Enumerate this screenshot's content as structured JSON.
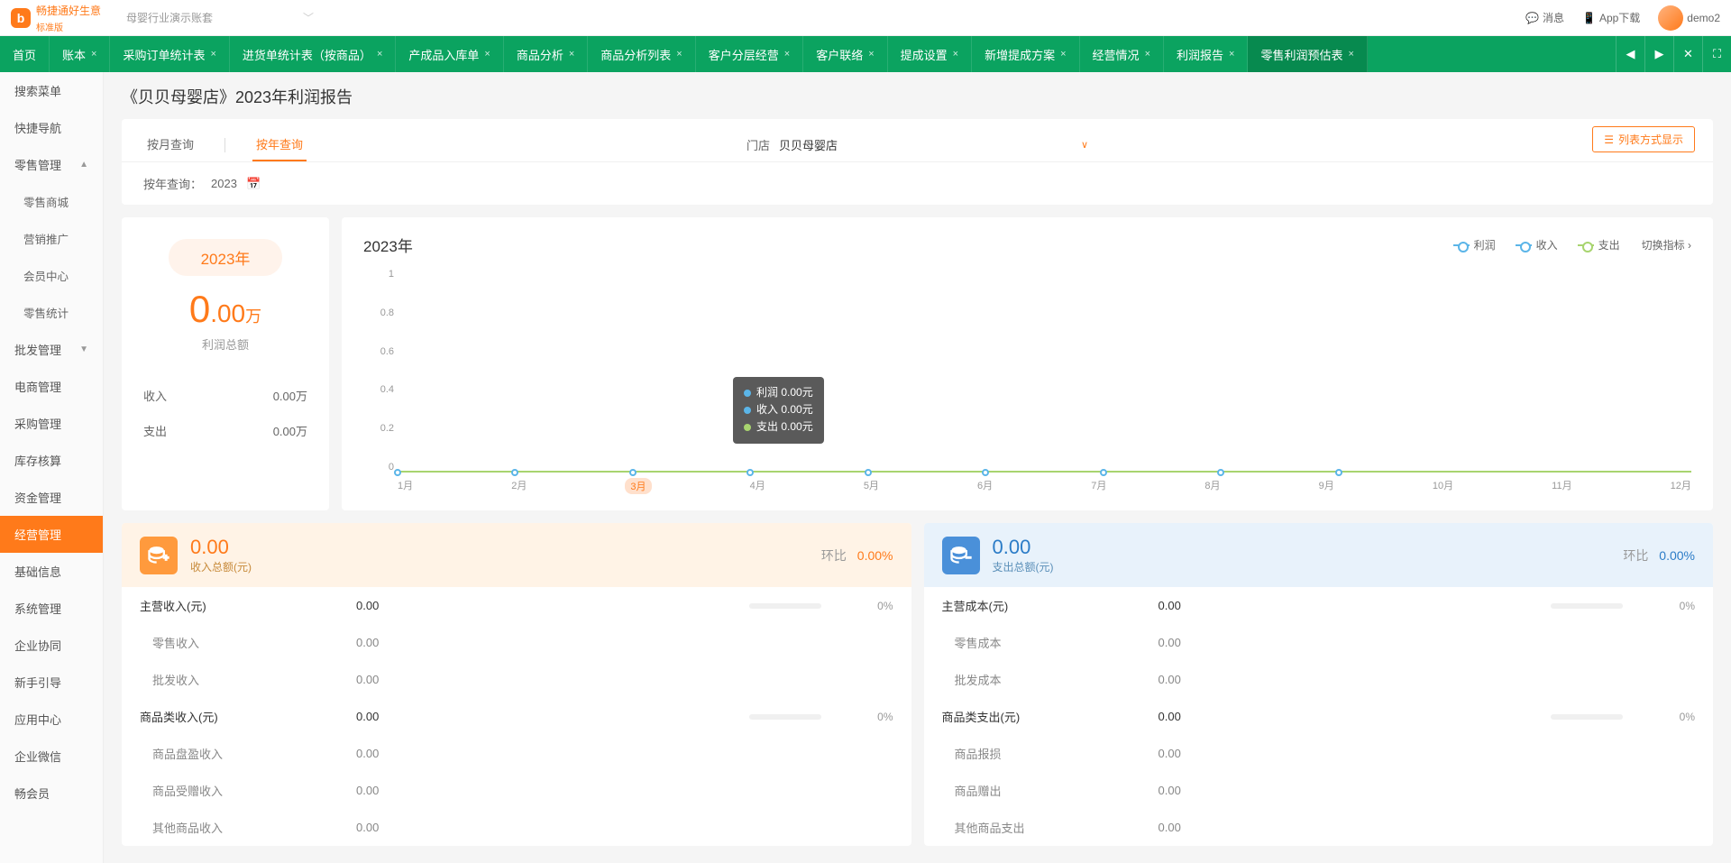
{
  "brand": {
    "name": "畅捷通好生意",
    "edition": "标准版"
  },
  "accountSet": "母婴行业演示账套",
  "topLinks": {
    "msg": "消息",
    "app": "App下载",
    "user": "demo2"
  },
  "navTabs": [
    {
      "label": "首页",
      "close": false
    },
    {
      "label": "账本",
      "close": true
    },
    {
      "label": "采购订单统计表",
      "close": true
    },
    {
      "label": "进货单统计表（按商品）",
      "close": true
    },
    {
      "label": "产成品入库单",
      "close": true
    },
    {
      "label": "商品分析",
      "close": true
    },
    {
      "label": "商品分析列表",
      "close": true
    },
    {
      "label": "客户分层经营",
      "close": true
    },
    {
      "label": "客户联络",
      "close": true
    },
    {
      "label": "提成设置",
      "close": true
    },
    {
      "label": "新增提成方案",
      "close": true
    },
    {
      "label": "经营情况",
      "close": true
    },
    {
      "label": "利润报告",
      "close": true
    },
    {
      "label": "零售利润预估表",
      "close": true,
      "active": true
    }
  ],
  "sidebar": [
    {
      "label": "搜索菜单"
    },
    {
      "label": "快捷导航"
    },
    {
      "label": "零售管理",
      "exp": "▲"
    },
    {
      "label": "零售商城",
      "sub": true
    },
    {
      "label": "营销推广",
      "sub": true
    },
    {
      "label": "会员中心",
      "sub": true
    },
    {
      "label": "零售统计",
      "sub": true
    },
    {
      "label": "批发管理",
      "exp": "▼"
    },
    {
      "label": "电商管理"
    },
    {
      "label": "采购管理"
    },
    {
      "label": "库存核算"
    },
    {
      "label": "资金管理"
    },
    {
      "label": "经营管理",
      "active": true
    },
    {
      "label": "基础信息"
    },
    {
      "label": "系统管理"
    },
    {
      "label": "企业协同"
    },
    {
      "label": "新手引导"
    },
    {
      "label": "应用中心"
    },
    {
      "label": "企业微信"
    },
    {
      "label": "畅会员"
    }
  ],
  "pageTitle": "《贝贝母婴店》2023年利润报告",
  "filter": {
    "tabMonth": "按月查询",
    "tabYear": "按年查询",
    "storeLabel": "门店",
    "storeValue": "贝贝母婴店",
    "listMode": "列表方式显示",
    "yearQueryLabel": "按年查询：",
    "yearQueryValue": "2023"
  },
  "summary": {
    "yearPill": "2023年",
    "bigInt": "0",
    "bigDec": ".00",
    "bigUnit": "万",
    "totalLabel": "利润总额",
    "income": {
      "l": "收入",
      "v": "0.00万"
    },
    "expense": {
      "l": "支出",
      "v": "0.00万"
    }
  },
  "chart": {
    "title": "2023年",
    "legend": [
      {
        "l": "利润",
        "c": "#5bb5e8"
      },
      {
        "l": "收入",
        "c": "#5bb5e8"
      },
      {
        "l": "支出",
        "c": "#a8d46f"
      }
    ],
    "switch": "切换指标",
    "yticks": [
      "1",
      "0.8",
      "0.6",
      "0.4",
      "0.2",
      "0"
    ],
    "xticks": [
      "1月",
      "2月",
      "3月",
      "4月",
      "5月",
      "6月",
      "7月",
      "8月",
      "9月",
      "10月",
      "11月",
      "12月"
    ],
    "hlIndex": 2,
    "tooltip": [
      {
        "c": "#5bb5e8",
        "t": "利润 0.00元"
      },
      {
        "c": "#5bb5e8",
        "t": "收入 0.00元"
      },
      {
        "c": "#a8d46f",
        "t": "支出 0.00元"
      }
    ],
    "colors": {
      "profit": "#5bb5e8",
      "income": "#5bb5e8",
      "expense": "#a8d46f"
    }
  },
  "incomeCard": {
    "amt": "0.00",
    "lbl": "收入总额(元)",
    "ratioL": "环比",
    "ratioV": "0.00%"
  },
  "expenseCard": {
    "amt": "0.00",
    "lbl": "支出总额(元)",
    "ratioL": "环比",
    "ratioV": "0.00%"
  },
  "incomeRows": [
    {
      "l": "主营收入(元)",
      "v": "0.00",
      "pct": "0%",
      "main": true
    },
    {
      "l": "零售收入",
      "v": "0.00",
      "sub": true
    },
    {
      "l": "批发收入",
      "v": "0.00",
      "sub": true
    },
    {
      "l": "商品类收入(元)",
      "v": "0.00",
      "pct": "0%",
      "main": true
    },
    {
      "l": "商品盘盈收入",
      "v": "0.00",
      "sub": true
    },
    {
      "l": "商品受赠收入",
      "v": "0.00",
      "sub": true
    },
    {
      "l": "其他商品收入",
      "v": "0.00",
      "sub": true
    }
  ],
  "expenseRows": [
    {
      "l": "主营成本(元)",
      "v": "0.00",
      "pct": "0%",
      "main": true
    },
    {
      "l": "零售成本",
      "v": "0.00",
      "sub": true
    },
    {
      "l": "批发成本",
      "v": "0.00",
      "sub": true
    },
    {
      "l": "商品类支出(元)",
      "v": "0.00",
      "pct": "0%",
      "main": true
    },
    {
      "l": "商品报损",
      "v": "0.00",
      "sub": true
    },
    {
      "l": "商品赠出",
      "v": "0.00",
      "sub": true
    },
    {
      "l": "其他商品支出",
      "v": "0.00",
      "sub": true
    }
  ]
}
